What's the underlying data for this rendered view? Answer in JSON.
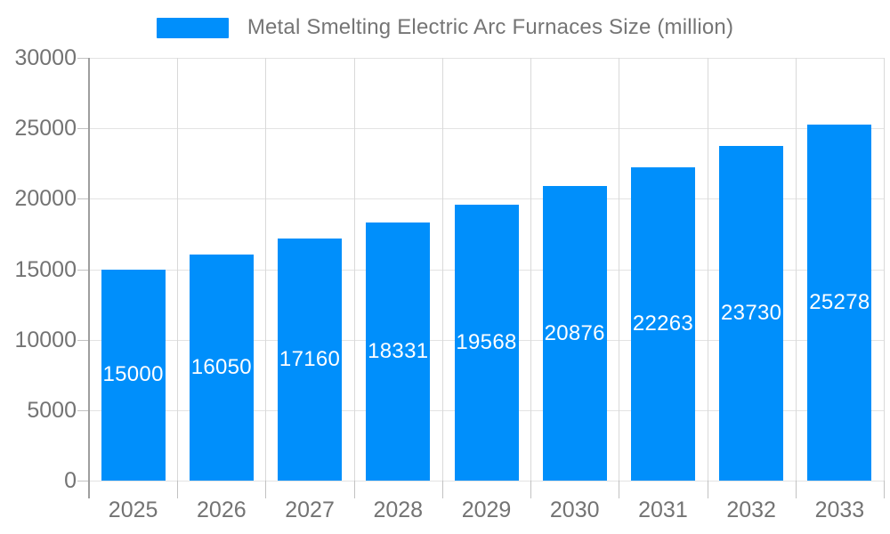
{
  "chart_data": {
    "type": "bar",
    "title": "Metal Smelting Electric Arc Furnaces Size (million)",
    "categories": [
      "2025",
      "2026",
      "2027",
      "2028",
      "2029",
      "2030",
      "2031",
      "2032",
      "2033"
    ],
    "values": [
      15000,
      16050,
      17160,
      18331,
      19568,
      20876,
      22263,
      23730,
      25278
    ],
    "xlabel": "",
    "ylabel": "",
    "ylim": [
      0,
      30000
    ],
    "yticks": [
      0,
      5000,
      10000,
      15000,
      20000,
      25000,
      30000
    ],
    "grid": true,
    "legend_position": "top",
    "colors": {
      "bar": "#008FFB",
      "data_label": "#ffffff",
      "axis_label": "#737373",
      "legend_text": "#757575",
      "gridline_h": "#e3e3e3",
      "gridline_v": "#d9d9d9",
      "tick": "#c2c2c2",
      "axis_line": "#9e9e9e",
      "background": "#ffffff"
    }
  }
}
